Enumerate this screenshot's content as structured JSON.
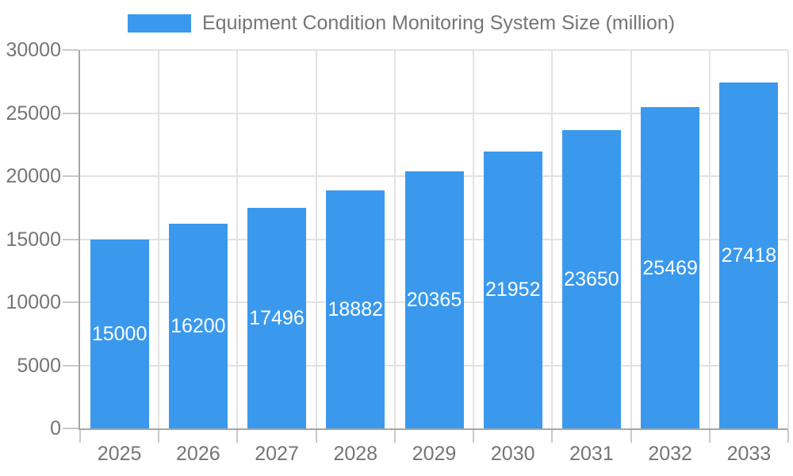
{
  "chart_data": {
    "type": "bar",
    "title": "Equipment Condition Monitoring System Size (million)",
    "legend": [
      "Equipment Condition Monitoring System Size (million)"
    ],
    "legend_position": "top",
    "categories": [
      "2025",
      "2026",
      "2027",
      "2028",
      "2029",
      "2030",
      "2031",
      "2032",
      "2033"
    ],
    "series": [
      {
        "name": "Equipment Condition Monitoring System Size (million)",
        "values": [
          15000,
          16200,
          17496,
          18882,
          20365,
          21952,
          23650,
          25469,
          27418
        ]
      }
    ],
    "value_labels_position": "inside-center",
    "xlabel": "",
    "ylabel": "",
    "ylim": [
      0,
      30000
    ],
    "yticks": [
      0,
      5000,
      10000,
      15000,
      20000,
      25000,
      30000
    ],
    "grid": true,
    "colors": {
      "bar": "#3A99ED",
      "grid": "#E2E2E2",
      "axis": "#A6A6A6",
      "tick": "#C9C9C9",
      "text": "#757575",
      "value_label": "#FFFFFF",
      "background": "#FFFFFF"
    }
  }
}
